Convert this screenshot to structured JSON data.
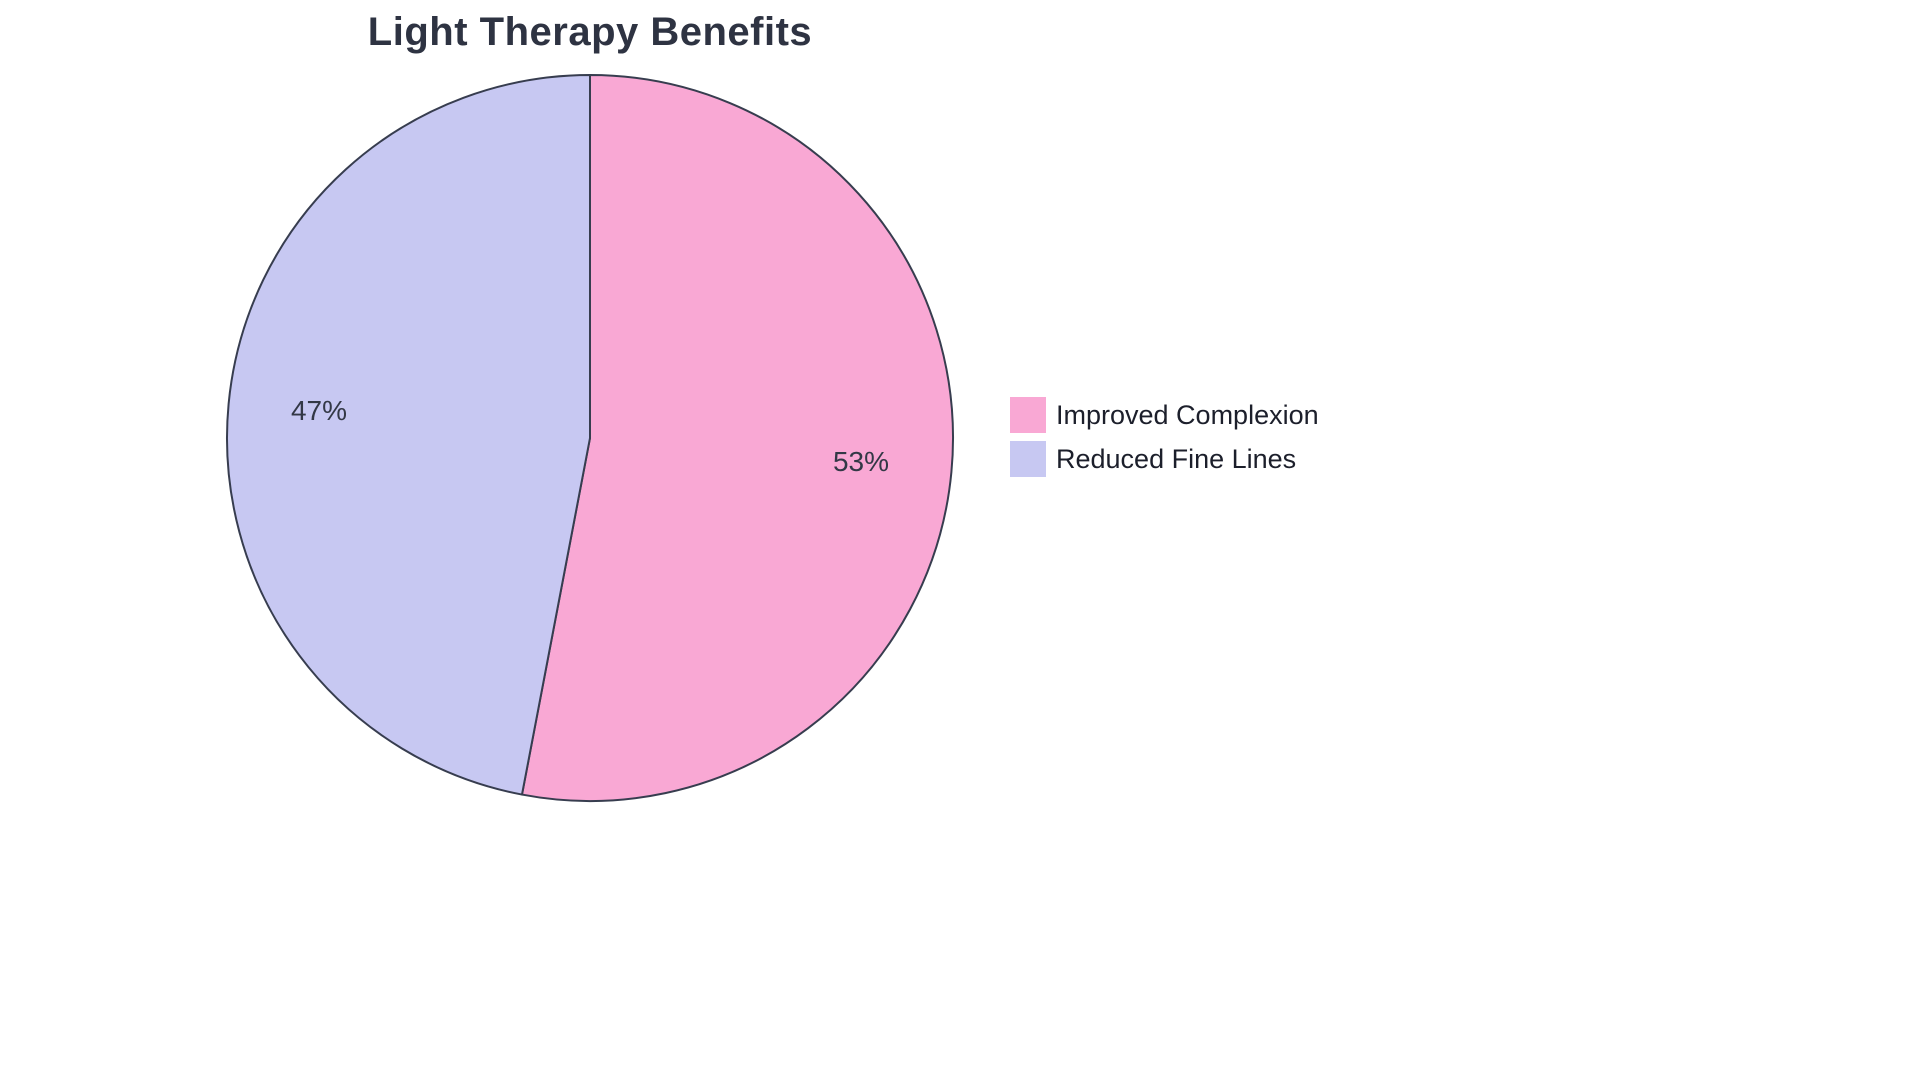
{
  "chart_data": {
    "type": "pie",
    "title": "Light Therapy Benefits",
    "slices": [
      {
        "label": "Improved Complexion",
        "value": 53,
        "display": "53%",
        "color": "#F9A8D4"
      },
      {
        "label": "Reduced Fine Lines",
        "value": 47,
        "display": "47%",
        "color": "#C7C8F2"
      }
    ],
    "start_angle_deg": 0,
    "direction": "clockwise",
    "legend_position": "right",
    "label_radius_fraction": 0.75,
    "stroke_color": "#373d4f",
    "stroke_width": 2,
    "title_color": "#2e3342",
    "label_color": "#333846",
    "background_color": "#ffffff"
  }
}
